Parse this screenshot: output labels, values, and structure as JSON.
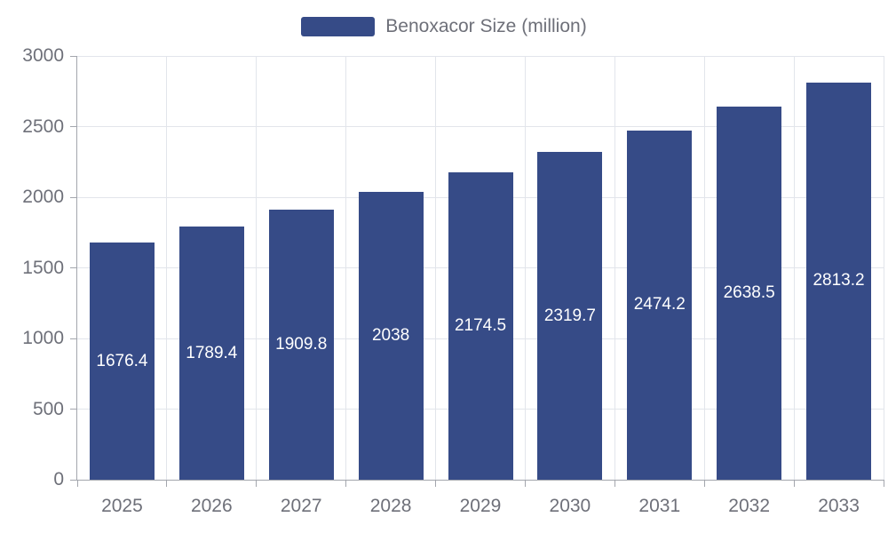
{
  "chart_data": {
    "type": "bar",
    "title": "",
    "legend_entries": [
      "Benoxacor Size (million)"
    ],
    "legend_position": "top-center",
    "categories": [
      "2025",
      "2026",
      "2027",
      "2028",
      "2029",
      "2030",
      "2031",
      "2032",
      "2033"
    ],
    "values": [
      1676.4,
      1789.4,
      1909.8,
      2038,
      2174.5,
      2319.7,
      2474.2,
      2638.5,
      2813.2
    ],
    "bar_value_labels": [
      "1676.4",
      "1789.4",
      "1909.8",
      "2038",
      "2174.5",
      "2319.7",
      "2474.2",
      "2638.5",
      "2813.2"
    ],
    "xlabel": "",
    "ylabel": "",
    "ylim": [
      0,
      3000
    ],
    "yticks": [
      0,
      500,
      1000,
      1500,
      2000,
      2500,
      3000
    ],
    "grid": true
  },
  "colors": {
    "bar": "#364B87",
    "bar_label": "#FFFFFF",
    "axis_text": "#6E7079",
    "axis_line": "#A3A6AD",
    "gridline": "#E2E5EB",
    "background": "#FFFFFF"
  }
}
